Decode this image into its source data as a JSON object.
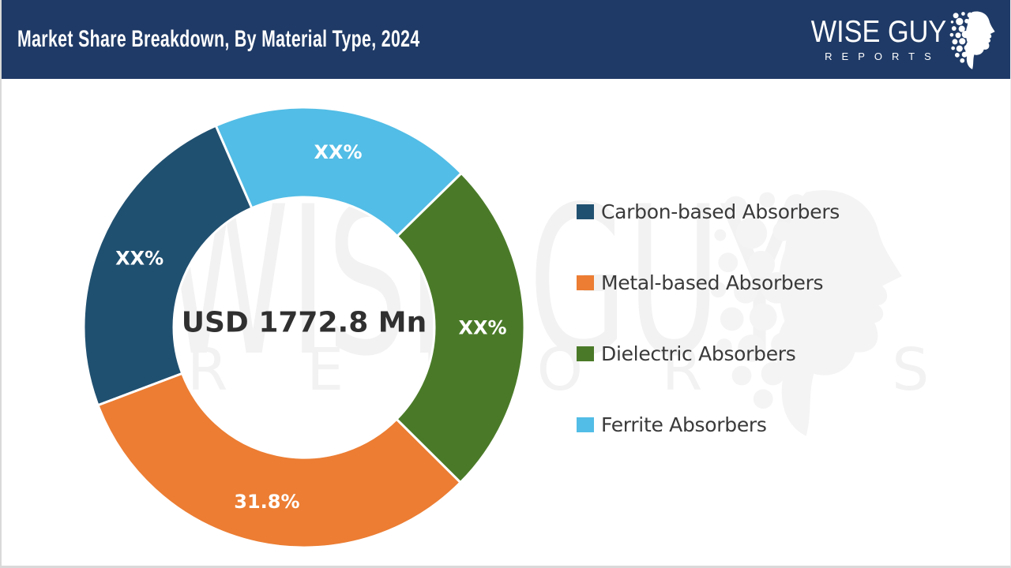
{
  "header": {
    "title": "Market Share Breakdown, By Material Type, 2024",
    "logo": {
      "line1": "WISE GUY",
      "line2": "REPORTS"
    }
  },
  "watermark": {
    "line1": "WISE GUY",
    "line2": "REPORTS"
  },
  "chart_data": {
    "type": "pie",
    "subtype": "donut",
    "title": "Market Share Breakdown, By Material Type, 2024",
    "center_label": "USD 1772.8 Mn",
    "start_angle_deg": 113.6,
    "donut_inner_ratio": 0.59,
    "legend_position": "right",
    "segments": [
      {
        "label": "Carbon-based Absorbers",
        "value_pct": 24.2,
        "display_label": "XX%",
        "color": "#205070"
      },
      {
        "label": "Metal-based Absorbers",
        "value_pct": 31.8,
        "display_label": "31.8%",
        "color": "#EC7D33"
      },
      {
        "label": "Dielectric Absorbers",
        "value_pct": 24.8,
        "display_label": "XX%",
        "color": "#4A7A28"
      },
      {
        "label": "Ferrite Absorbers",
        "value_pct": 19.2,
        "display_label": "XX%",
        "color": "#52BDE6"
      }
    ]
  },
  "colors": {
    "header_bg": "#1F3A66",
    "watermark": "#F2F2F2",
    "center_text": "#303030",
    "legend_text": "#3A3A3A",
    "border": "#D9D9D9"
  }
}
